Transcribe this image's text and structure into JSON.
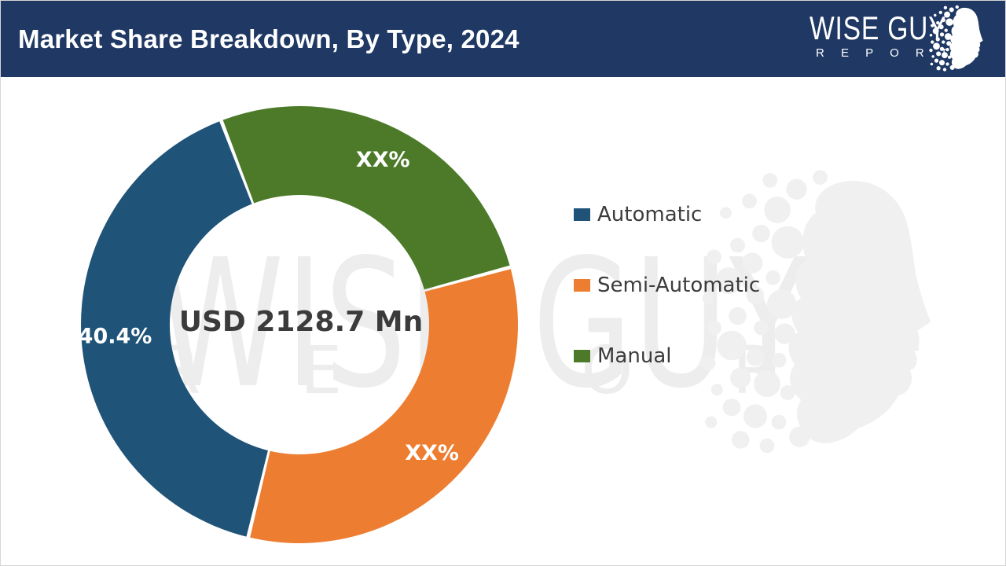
{
  "header": {
    "title": "Market Share Breakdown, By Type, 2024",
    "background_color": "#1F3864",
    "logo": {
      "wordmark": "WISE GUY",
      "subtext": "R E P O R T S"
    }
  },
  "watermark": {
    "line1": "WISE GUY",
    "line2": "R E P O R T S"
  },
  "chart_data": {
    "type": "pie",
    "subtype": "donut",
    "title": "Market Share Breakdown, By Type, 2024",
    "center_label": "USD 2128.7 Mn",
    "start_angle_deg": 111,
    "direction": "counterclockwise",
    "inner_radius_ratio": 0.59,
    "segments": [
      {
        "name": "Automatic",
        "data_label": "40.4%",
        "value_pct": 40.4,
        "color": "#1F5378"
      },
      {
        "name": "Semi-Automatic",
        "data_label": "XX%",
        "value_pct": 33.0,
        "color": "#ED7D31"
      },
      {
        "name": "Manual",
        "data_label": "XX%",
        "value_pct": 26.6,
        "color": "#4C7A28"
      }
    ],
    "legend": {
      "position": "right-middle",
      "items": [
        "Automatic",
        "Semi-Automatic",
        "Manual"
      ]
    }
  }
}
